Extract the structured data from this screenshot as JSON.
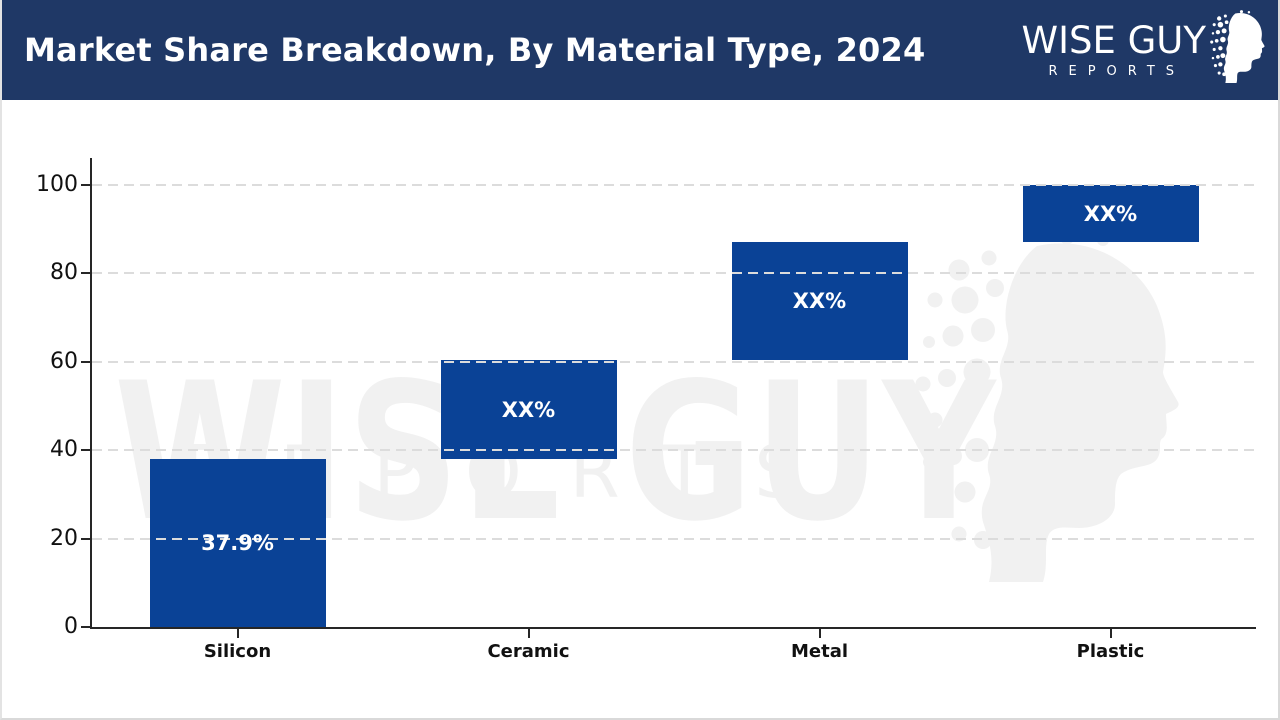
{
  "header": {
    "title": "Market Share Breakdown, By Material Type, 2024",
    "logo": {
      "name": "WISE GUY",
      "sub": "REPORTS"
    }
  },
  "watermark": {
    "line1": "WISE GUY",
    "line2": "REPORTS"
  },
  "chart_data": {
    "type": "bar",
    "subtype": "waterfall",
    "title": "Market Share Breakdown, By Material Type, 2024",
    "xlabel": "",
    "ylabel": "",
    "categories": [
      "Silicon",
      "Ceramic",
      "Metal",
      "Plastic"
    ],
    "segments": [
      {
        "category": "Silicon",
        "start": 0,
        "end": 37.9,
        "size_estimate": 37.9,
        "label": "37.9%"
      },
      {
        "category": "Ceramic",
        "start": 37.9,
        "end": 60.4,
        "size_estimate": 22.5,
        "label": "XX%"
      },
      {
        "category": "Metal",
        "start": 60.4,
        "end": 87.1,
        "size_estimate": 26.7,
        "label": "XX%"
      },
      {
        "category": "Plastic",
        "start": 87.1,
        "end": 100.0,
        "size_estimate": 12.9,
        "label": "XX%"
      }
    ],
    "yticks": [
      0,
      20,
      40,
      60,
      80,
      100
    ],
    "ylim": [
      0,
      100
    ],
    "grid": "horizontal-dashed",
    "legend_position": "none",
    "colors": {
      "bar": "#0a4296",
      "bar_label": "#ffffff",
      "grid": "#dcdcdc",
      "axis": "#262626",
      "tick_label": "#111111"
    }
  },
  "colors": {
    "header_bg": "#1f3866",
    "page_bg": "#ffffff",
    "watermark": "#f1f1f1",
    "border": "#d9d9d9"
  }
}
